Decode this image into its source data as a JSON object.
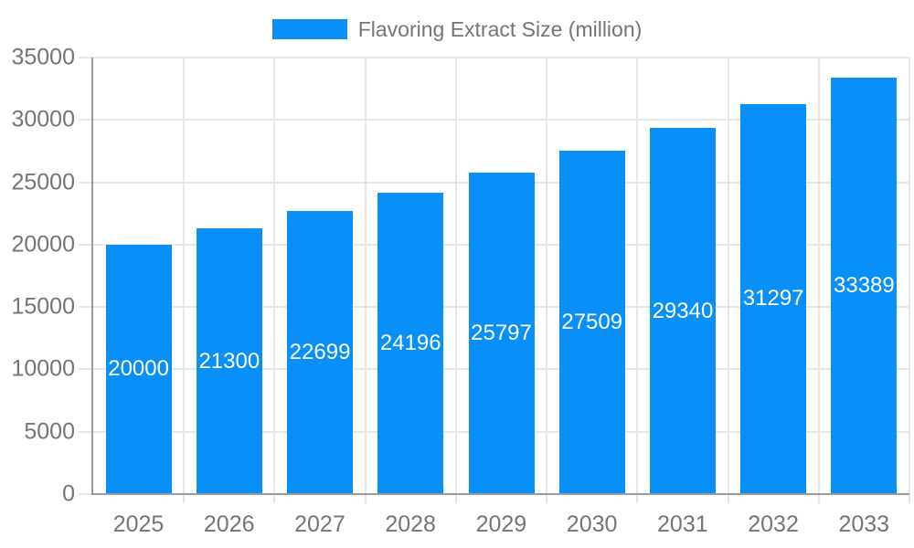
{
  "chart_data": {
    "type": "bar",
    "title": "Flavoring Extract Size (million)",
    "categories": [
      "2025",
      "2026",
      "2027",
      "2028",
      "2029",
      "2030",
      "2031",
      "2032",
      "2033"
    ],
    "values": [
      20000,
      21300,
      22699,
      24196,
      25797,
      27509,
      29340,
      31297,
      33389
    ],
    "bar_labels": [
      "20000",
      "21300",
      "22699",
      "24196",
      "25797",
      "27509",
      "29340",
      "31297",
      "33389"
    ],
    "ylim": [
      0,
      35000
    ],
    "yticks": [
      0,
      5000,
      10000,
      15000,
      20000,
      25000,
      30000,
      35000
    ],
    "ytick_labels": [
      "0",
      "5000",
      "10000",
      "15000",
      "20000",
      "25000",
      "30000",
      "35000"
    ],
    "grid": true,
    "legend_position": "top",
    "colors": {
      "bar": "#0890F8",
      "bar_label": "#FFFFFF",
      "axis_text": "#757575",
      "axis_line": "#999999",
      "gridline": "#E6E6E6",
      "background": "#FFFFFF"
    }
  }
}
